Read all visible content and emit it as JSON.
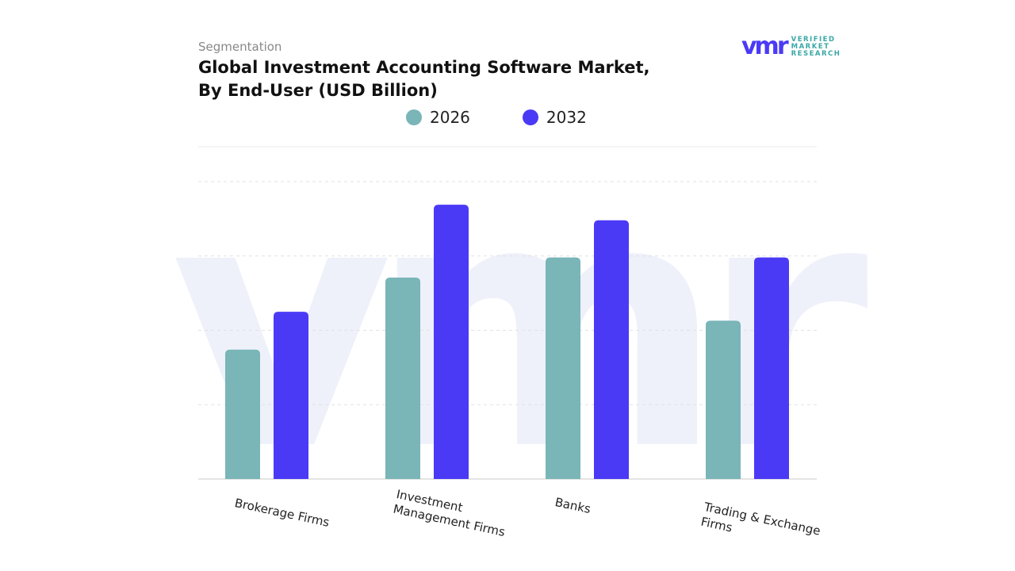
{
  "header": {
    "segment_label": "Segmentation",
    "title": "Global Investment Accounting Software Market, By End-User (USD Billion)"
  },
  "logo": {
    "mark": "vmr",
    "text": "VERIFIED MARKET RESEARCH"
  },
  "chart_data": {
    "type": "bar",
    "title": "Global Investment Accounting Software Market, By End-User (USD Billion)",
    "categories": [
      "Brokerage Firms",
      "Investment Management Firms",
      "Banks",
      "Trading & Exchange Firms"
    ],
    "series": [
      {
        "name": "2026",
        "color": "#7ab5b8",
        "values": [
          1.74,
          2.71,
          2.98,
          2.13
        ]
      },
      {
        "name": "2032",
        "color": "#4b3af5",
        "values": [
          2.25,
          3.69,
          3.48,
          2.98
        ]
      }
    ],
    "ylim": [
      0,
      4
    ],
    "y_tick_labels_shown": false,
    "grid": true,
    "legend_position": "top",
    "note_on_values": "relative estimates, no y-axis values printed"
  }
}
